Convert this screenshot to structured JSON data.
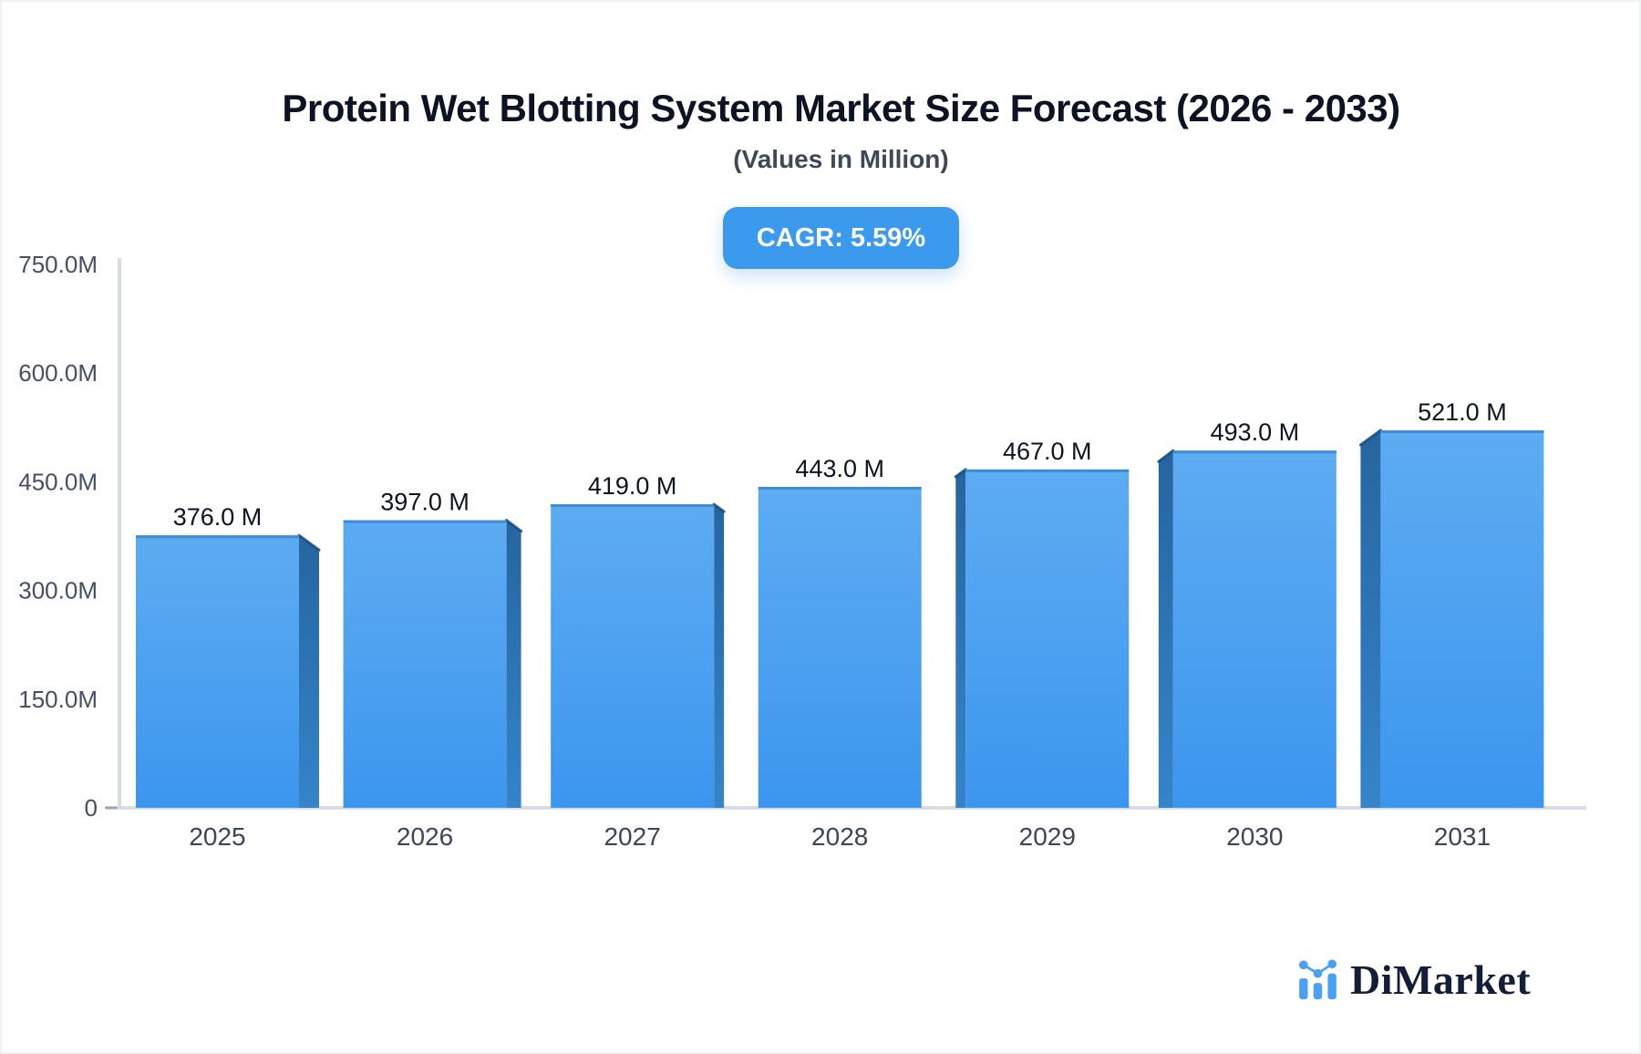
{
  "header": {
    "title": "Protein Wet Blotting System Market Size Forecast (2026 - 2033)",
    "subtitle": "(Values in Million)",
    "cagr_badge": "CAGR: 5.59%",
    "badge_color": "#3b99ee"
  },
  "chart_data": {
    "type": "bar",
    "title": "Protein Wet Blotting System Market Size Forecast (2026 - 2033)",
    "subtitle": "(Values in Million)",
    "cagr": "5.59%",
    "unit": "Million",
    "categories": [
      "2025",
      "2026",
      "2027",
      "2028",
      "2029",
      "2030",
      "2031"
    ],
    "values": [
      376.0,
      397.0,
      419.0,
      443.0,
      467.0,
      493.0,
      521.0
    ],
    "value_labels": [
      "376.0 M",
      "397.0 M",
      "419.0 M",
      "443.0 M",
      "467.0 M",
      "493.0 M",
      "521.0 M"
    ],
    "ylim": [
      0,
      750
    ],
    "yticks": {
      "values": [
        750,
        600,
        450,
        300,
        150,
        0
      ],
      "labels": [
        "750.0M",
        "600.0M",
        "450.0M",
        "300.0M",
        "150.0M",
        "0"
      ]
    },
    "grid": false,
    "legend": false,
    "bar_style": "3d-perspective-center-vanishing",
    "colors": {
      "bar_face_top": "#5dacf2",
      "bar_face_bottom": "#3c96ee",
      "bar_top_edge": "#3e86d2",
      "bar_side_top": "#26659f",
      "bar_side_bottom": "#3584ca",
      "bar_side_slant": "#17497b",
      "axis_line": "#d9dce3",
      "tick_dash": "#9aa2ae",
      "tick_label": "#465062",
      "year_label": "#3c4656",
      "value_label": "#0e1420"
    }
  },
  "footer": {
    "brand": "DiMarket",
    "icon": "mini-bar-chart-icon",
    "brand_color": "#141e38",
    "icon_color": "#4aa0f5"
  }
}
